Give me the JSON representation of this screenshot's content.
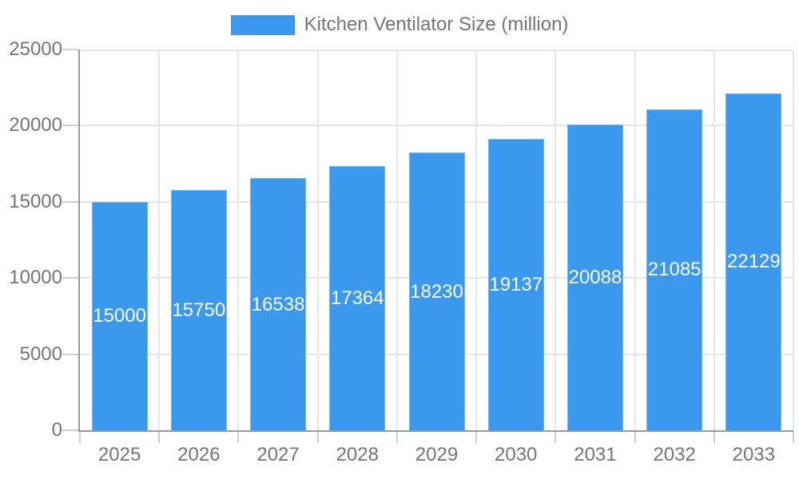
{
  "legend": {
    "label": "Kitchen Ventilator Size (million)"
  },
  "chart_data": {
    "type": "bar",
    "title": "Kitchen Ventilator Size (million)",
    "categories": [
      "2025",
      "2026",
      "2027",
      "2028",
      "2029",
      "2030",
      "2031",
      "2032",
      "2033"
    ],
    "values": [
      15000,
      15750,
      16538,
      17364,
      18230,
      19137,
      20088,
      21085,
      22129
    ],
    "series": [
      {
        "name": "Kitchen Ventilator Size (million)",
        "values": [
          15000,
          15750,
          16538,
          17364,
          18230,
          19137,
          20088,
          21085,
          22129
        ]
      }
    ],
    "xlabel": "",
    "ylabel": "",
    "ylim": [
      0,
      25000
    ],
    "yticks": [
      0,
      5000,
      10000,
      15000,
      20000,
      25000
    ],
    "grid": true,
    "legend_position": "top-center",
    "data_label_position": "inside-center",
    "colors": {
      "bar": "#3b99ed",
      "bar_label": "#ffffff",
      "axis_line": "#9a9a9a",
      "gridline": "#e6e6e6",
      "tick_mark": "#cfcfcf",
      "axis_text": "#757575",
      "background": "#ffffff"
    }
  }
}
